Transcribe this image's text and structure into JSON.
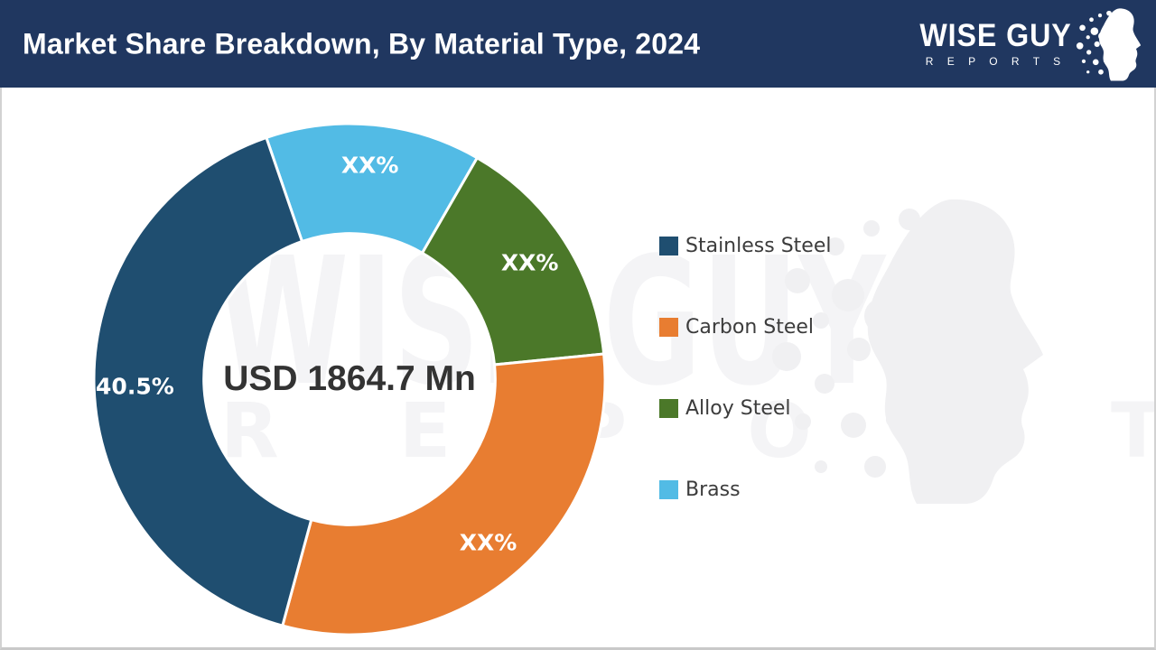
{
  "header": {
    "title": "Market Share Breakdown, By Material Type, 2024",
    "logo_line1": "WISE GUY",
    "logo_line2": "R E P O R T S"
  },
  "watermark": {
    "line1": "WISE GUY",
    "line2": "R E P O R T S"
  },
  "chart_data": {
    "type": "pie",
    "subtype": "donut",
    "title": "Market Share Breakdown, By Material Type, 2024",
    "center_label": "USD 1864.7 Mn",
    "start_angle_deg": -19,
    "direction": "clockwise",
    "inner_radius_ratio": 0.57,
    "legend_position": "right",
    "slices": [
      {
        "label": "Brass",
        "value_pct": 13.6,
        "display_label": "XX%",
        "color": "#52bbe5"
      },
      {
        "label": "Alloy Steel",
        "value_pct": 15.1,
        "display_label": "XX%",
        "color": "#4b7829"
      },
      {
        "label": "Carbon Steel",
        "value_pct": 30.8,
        "display_label": "XX%",
        "color": "#e87d31"
      },
      {
        "label": "Stainless Steel",
        "value_pct": 40.5,
        "display_label": "40.5%",
        "color": "#1f4e70"
      }
    ]
  },
  "legend": {
    "items": [
      {
        "label": "Stainless Steel",
        "color": "#1f4e70"
      },
      {
        "label": "Carbon Steel",
        "color": "#e87d31"
      },
      {
        "label": "Alloy Steel",
        "color": "#4b7829"
      },
      {
        "label": "Brass",
        "color": "#52bbe5"
      }
    ]
  },
  "colors": {
    "header_bg": "#203760",
    "center_text": "#333333",
    "watermark": "#f4f4f6"
  }
}
